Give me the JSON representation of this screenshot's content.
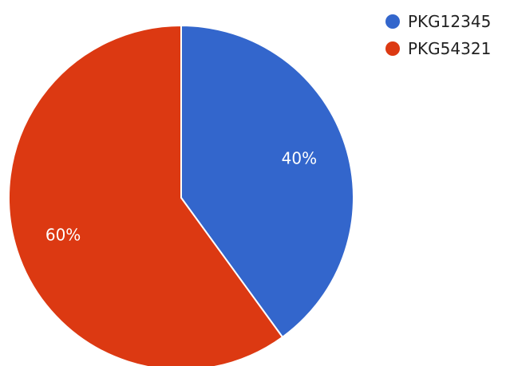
{
  "chart_data": {
    "type": "pie",
    "slices": [
      {
        "name": "PKG12345",
        "value": 40,
        "label": "40%",
        "color": "#3366CC"
      },
      {
        "name": "PKG54321",
        "value": 60,
        "label": "60%",
        "color": "#DC3912"
      }
    ],
    "legend_position": "top-right",
    "start_angle": "12 o'clock",
    "direction": "clockwise"
  }
}
